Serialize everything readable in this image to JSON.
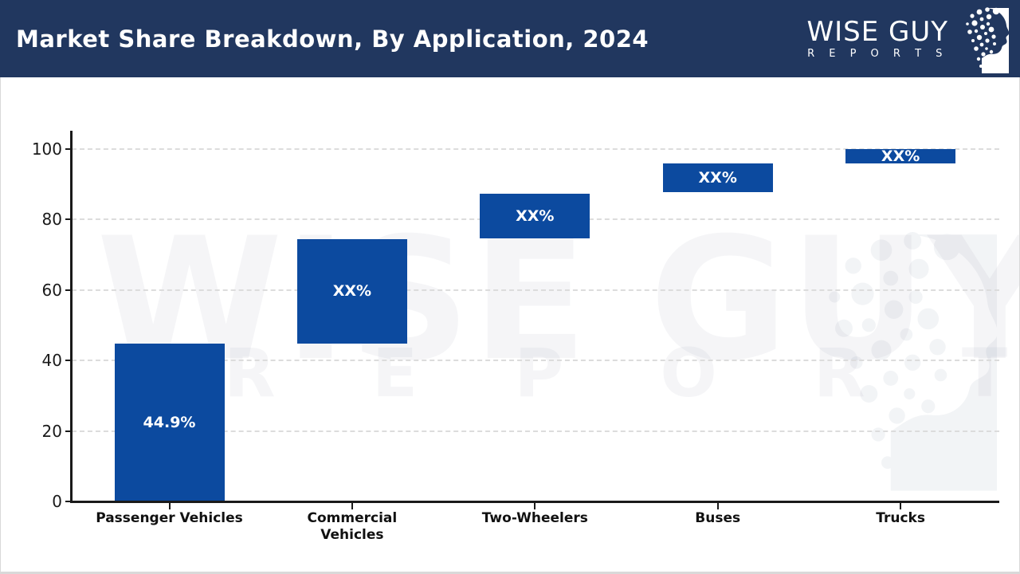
{
  "header": {
    "title": "Market Share Breakdown, By Application, 2024",
    "logo": {
      "line1": "WISE GUY",
      "line2": "R E P O R T S"
    }
  },
  "watermark": {
    "line1": "WISE GUY",
    "line2": "R E P O R T S"
  },
  "chart_data": {
    "type": "bar",
    "subtype": "waterfall",
    "title": "Market Share Breakdown, By Application, 2024",
    "categories": [
      "Passenger Vehicles",
      "Commercial\nVehicles",
      "Two-Wheelers",
      "Buses",
      "Trucks"
    ],
    "segments": [
      {
        "category": "Passenger Vehicles",
        "start": 0,
        "end": 44.9,
        "label": "44.9%"
      },
      {
        "category": "Commercial Vehicles",
        "start": 44.9,
        "end": 74.4,
        "label": "XX%"
      },
      {
        "category": "Two-Wheelers",
        "start": 74.6,
        "end": 87.3,
        "label": "XX%"
      },
      {
        "category": "Buses",
        "start": 87.7,
        "end": 96.0,
        "label": "XX%"
      },
      {
        "category": "Trucks",
        "start": 96.0,
        "end": 100.0,
        "label": "XX%"
      }
    ],
    "xlabel": "",
    "ylabel": "",
    "ylim": [
      0,
      105
    ],
    "yticks": [
      0,
      20,
      40,
      60,
      80,
      100
    ],
    "grid": "horizontal-dashed",
    "legend": "none",
    "bar_color": "#0c4a9f",
    "bar_label_color": "#ffffff",
    "axis_color": "#1a1a1a"
  },
  "colors": {
    "header_bg": "#21375f",
    "bar": "#0c4a9f",
    "grid": "#dcdcdc",
    "watermark": "#eef0f3"
  }
}
